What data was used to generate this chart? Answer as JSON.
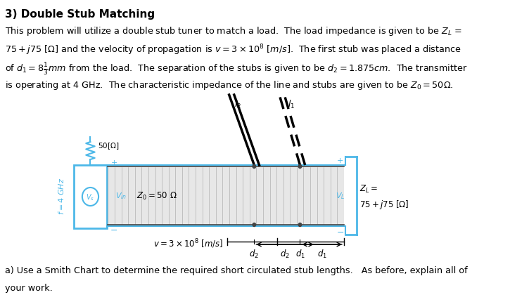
{
  "title": "3) Double Stub Matching",
  "paragraph1": "This problem will utilize a double stub tuner to match a load.  The load impedance is given to be $Z_L$ =",
  "paragraph2": "$75 + j75$ [$\\Omega$] and the velocity of propagation is $v = 3\\times10^8$ $[m/s]$.  The first stub was placed a distance",
  "paragraph3": "of $d_1 = 8\\frac{1}{3}mm$ from the load.  The separation of the stubs is given to be $d_2 = 1.875cm$.  The transmitter",
  "paragraph4": "is operating at 4 GHz.  The characteristic impedance of the line and stubs are given to be $Z_0 = 50\\Omega$.",
  "footer1": "a) Use a Smith Chart to determine the required short circulated stub lengths.   As before, explain all of",
  "footer2": "your work.",
  "bg_color": "#ffffff",
  "cyan_color": "#00bfff",
  "diagram_color": "#4db8e8"
}
